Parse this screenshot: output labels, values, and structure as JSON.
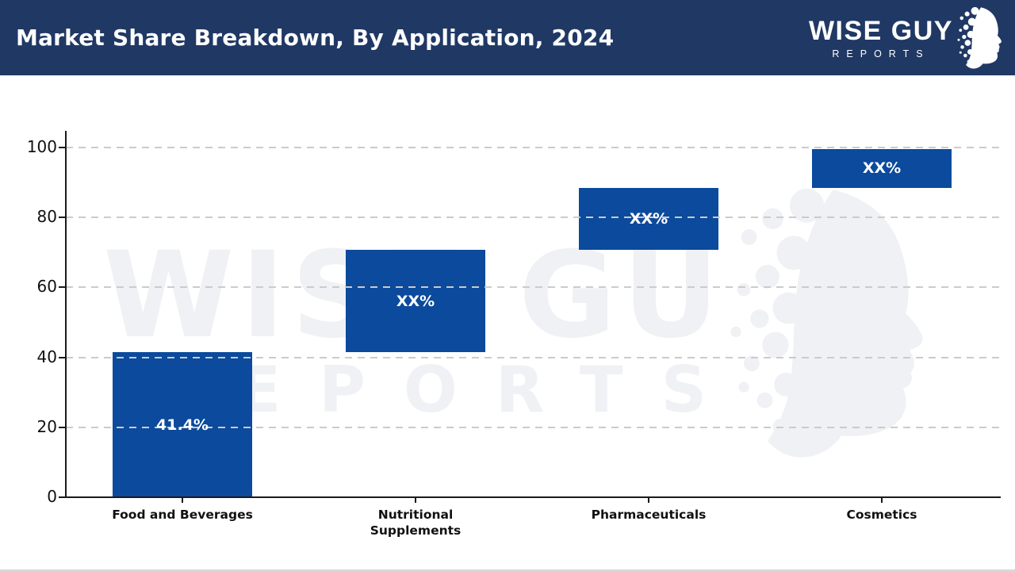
{
  "header": {
    "title": "Market Share Breakdown, By Application, 2024",
    "logo": {
      "primary": "WISE GUY",
      "secondary": "REPORTS"
    }
  },
  "watermark": {
    "primary": "WISE GU",
    "secondary": "REPORTS"
  },
  "chart_data": {
    "type": "bar",
    "subtype": "waterfall",
    "title": "Market Share Breakdown, By Application, 2024",
    "xlabel": "",
    "ylabel": "",
    "categories": [
      "Food and Beverages",
      "Nutritional Supplements",
      "Pharmaceuticals",
      "Cosmetics"
    ],
    "segments": [
      {
        "category": "Food and Beverages",
        "start": 0,
        "end": 41.4,
        "height": 41.4,
        "label": "41.4%"
      },
      {
        "category": "Nutritional Supplements",
        "start": 41.4,
        "end": 70.7,
        "height": 29.3,
        "label": "XX%"
      },
      {
        "category": "Pharmaceuticals",
        "start": 70.7,
        "end": 88.5,
        "height": 17.8,
        "label": "XX%"
      },
      {
        "category": "Cosmetics",
        "start": 88.5,
        "end": 99.6,
        "height": 11.1,
        "label": "XX%"
      }
    ],
    "y_ticks": [
      0,
      20,
      40,
      60,
      80,
      100
    ],
    "ylim": [
      0,
      105
    ],
    "grid": "horizontal-dashed",
    "legend": "none",
    "colors": {
      "bar": "#0b4a9c",
      "bar_label": "#ffffff",
      "grid": "#cbcbcb",
      "axis": "#1a1a1a",
      "header_bg": "#203864",
      "header_text": "#ffffff",
      "watermark": "#f0f1f4"
    }
  }
}
